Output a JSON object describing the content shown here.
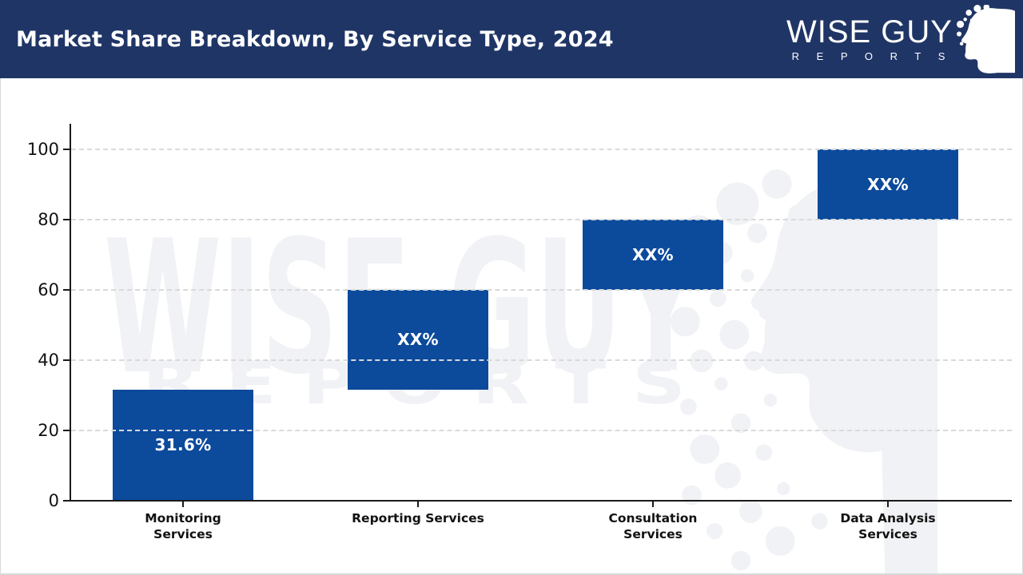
{
  "header": {
    "title": "Market Share Breakdown, By Service Type, 2024",
    "logo_line1": "WISE GUY",
    "logo_line2": "R E P O R T S"
  },
  "watermark": {
    "line1": "WISE GUY",
    "line2": "R E P O R T S"
  },
  "colors": {
    "header_bg": "#1f3566",
    "bar_color": "#0c4a9c",
    "bar_label_color": "#ffffff",
    "axis_color": "#1a1a1a",
    "grid_color": "#d9d9d9",
    "watermark_color": "#f1f2f5",
    "text_color": "#111111"
  },
  "chart_data": {
    "type": "bar",
    "subtype": "waterfall",
    "title": "Market Share Breakdown, By Service Type, 2024",
    "categories": [
      "Monitoring Services",
      "Reporting Services",
      "Consultation Services",
      "Data Analysis Services"
    ],
    "category_lines": [
      [
        "Monitoring",
        "Services"
      ],
      [
        "Reporting Services"
      ],
      [
        "Consultation",
        "Services"
      ],
      [
        "Data Analysis",
        "Services"
      ]
    ],
    "segments": [
      {
        "category": "Monitoring Services",
        "start": 0,
        "end": 31.6,
        "label": "31.6%"
      },
      {
        "category": "Reporting Services",
        "start": 31.6,
        "end": 60,
        "label": "XX%"
      },
      {
        "category": "Consultation Services",
        "start": 60,
        "end": 80,
        "label": "XX%"
      },
      {
        "category": "Data Analysis Services",
        "start": 80,
        "end": 100,
        "label": "XX%"
      }
    ],
    "ylim": [
      0,
      100
    ],
    "yticks": [
      0,
      20,
      40,
      60,
      80,
      100
    ],
    "grid": "horizontal-dashed",
    "legend": "none"
  }
}
